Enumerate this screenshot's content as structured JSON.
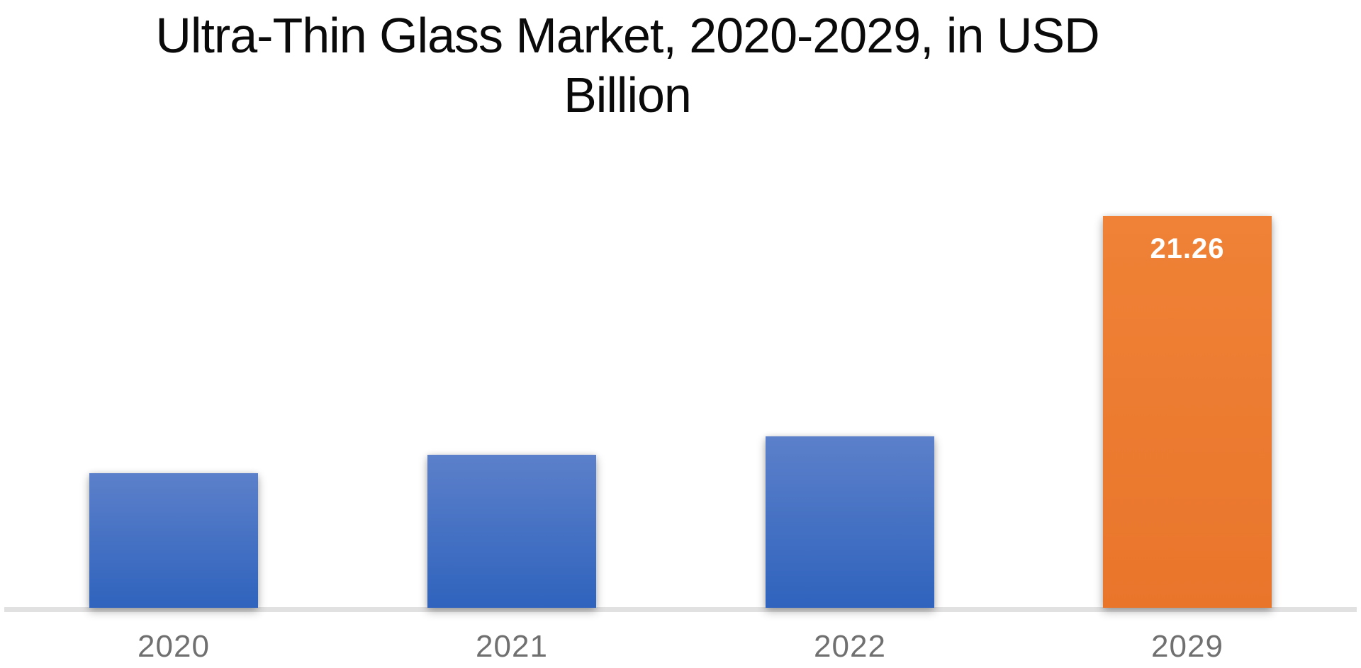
{
  "chart_data": {
    "type": "bar",
    "title": "Ultra-Thin Glass Market, 2020-2029, in USD Billion",
    "unit": "USD Billion",
    "categories": [
      "2020",
      "2021",
      "2022",
      "2029"
    ],
    "values": [
      7.3,
      8.3,
      9.3,
      21.26
    ],
    "data_labels": [
      "",
      "",
      "",
      "21.26"
    ],
    "highlight": [
      false,
      false,
      false,
      true
    ],
    "ylim": [
      0,
      23.5
    ],
    "grid": false,
    "legend": false,
    "xlabel": "",
    "ylabel": "",
    "colors": {
      "bar_top": "#5C80CA",
      "bar_bottom": "#2F63BD",
      "highlight_top": "#EF8236",
      "highlight_bottom": "#E9752B",
      "axis_line": "#E1E1E1",
      "tick_label": "#707070",
      "data_label": "#FFFFFF",
      "title": "#0A0A0A"
    }
  }
}
